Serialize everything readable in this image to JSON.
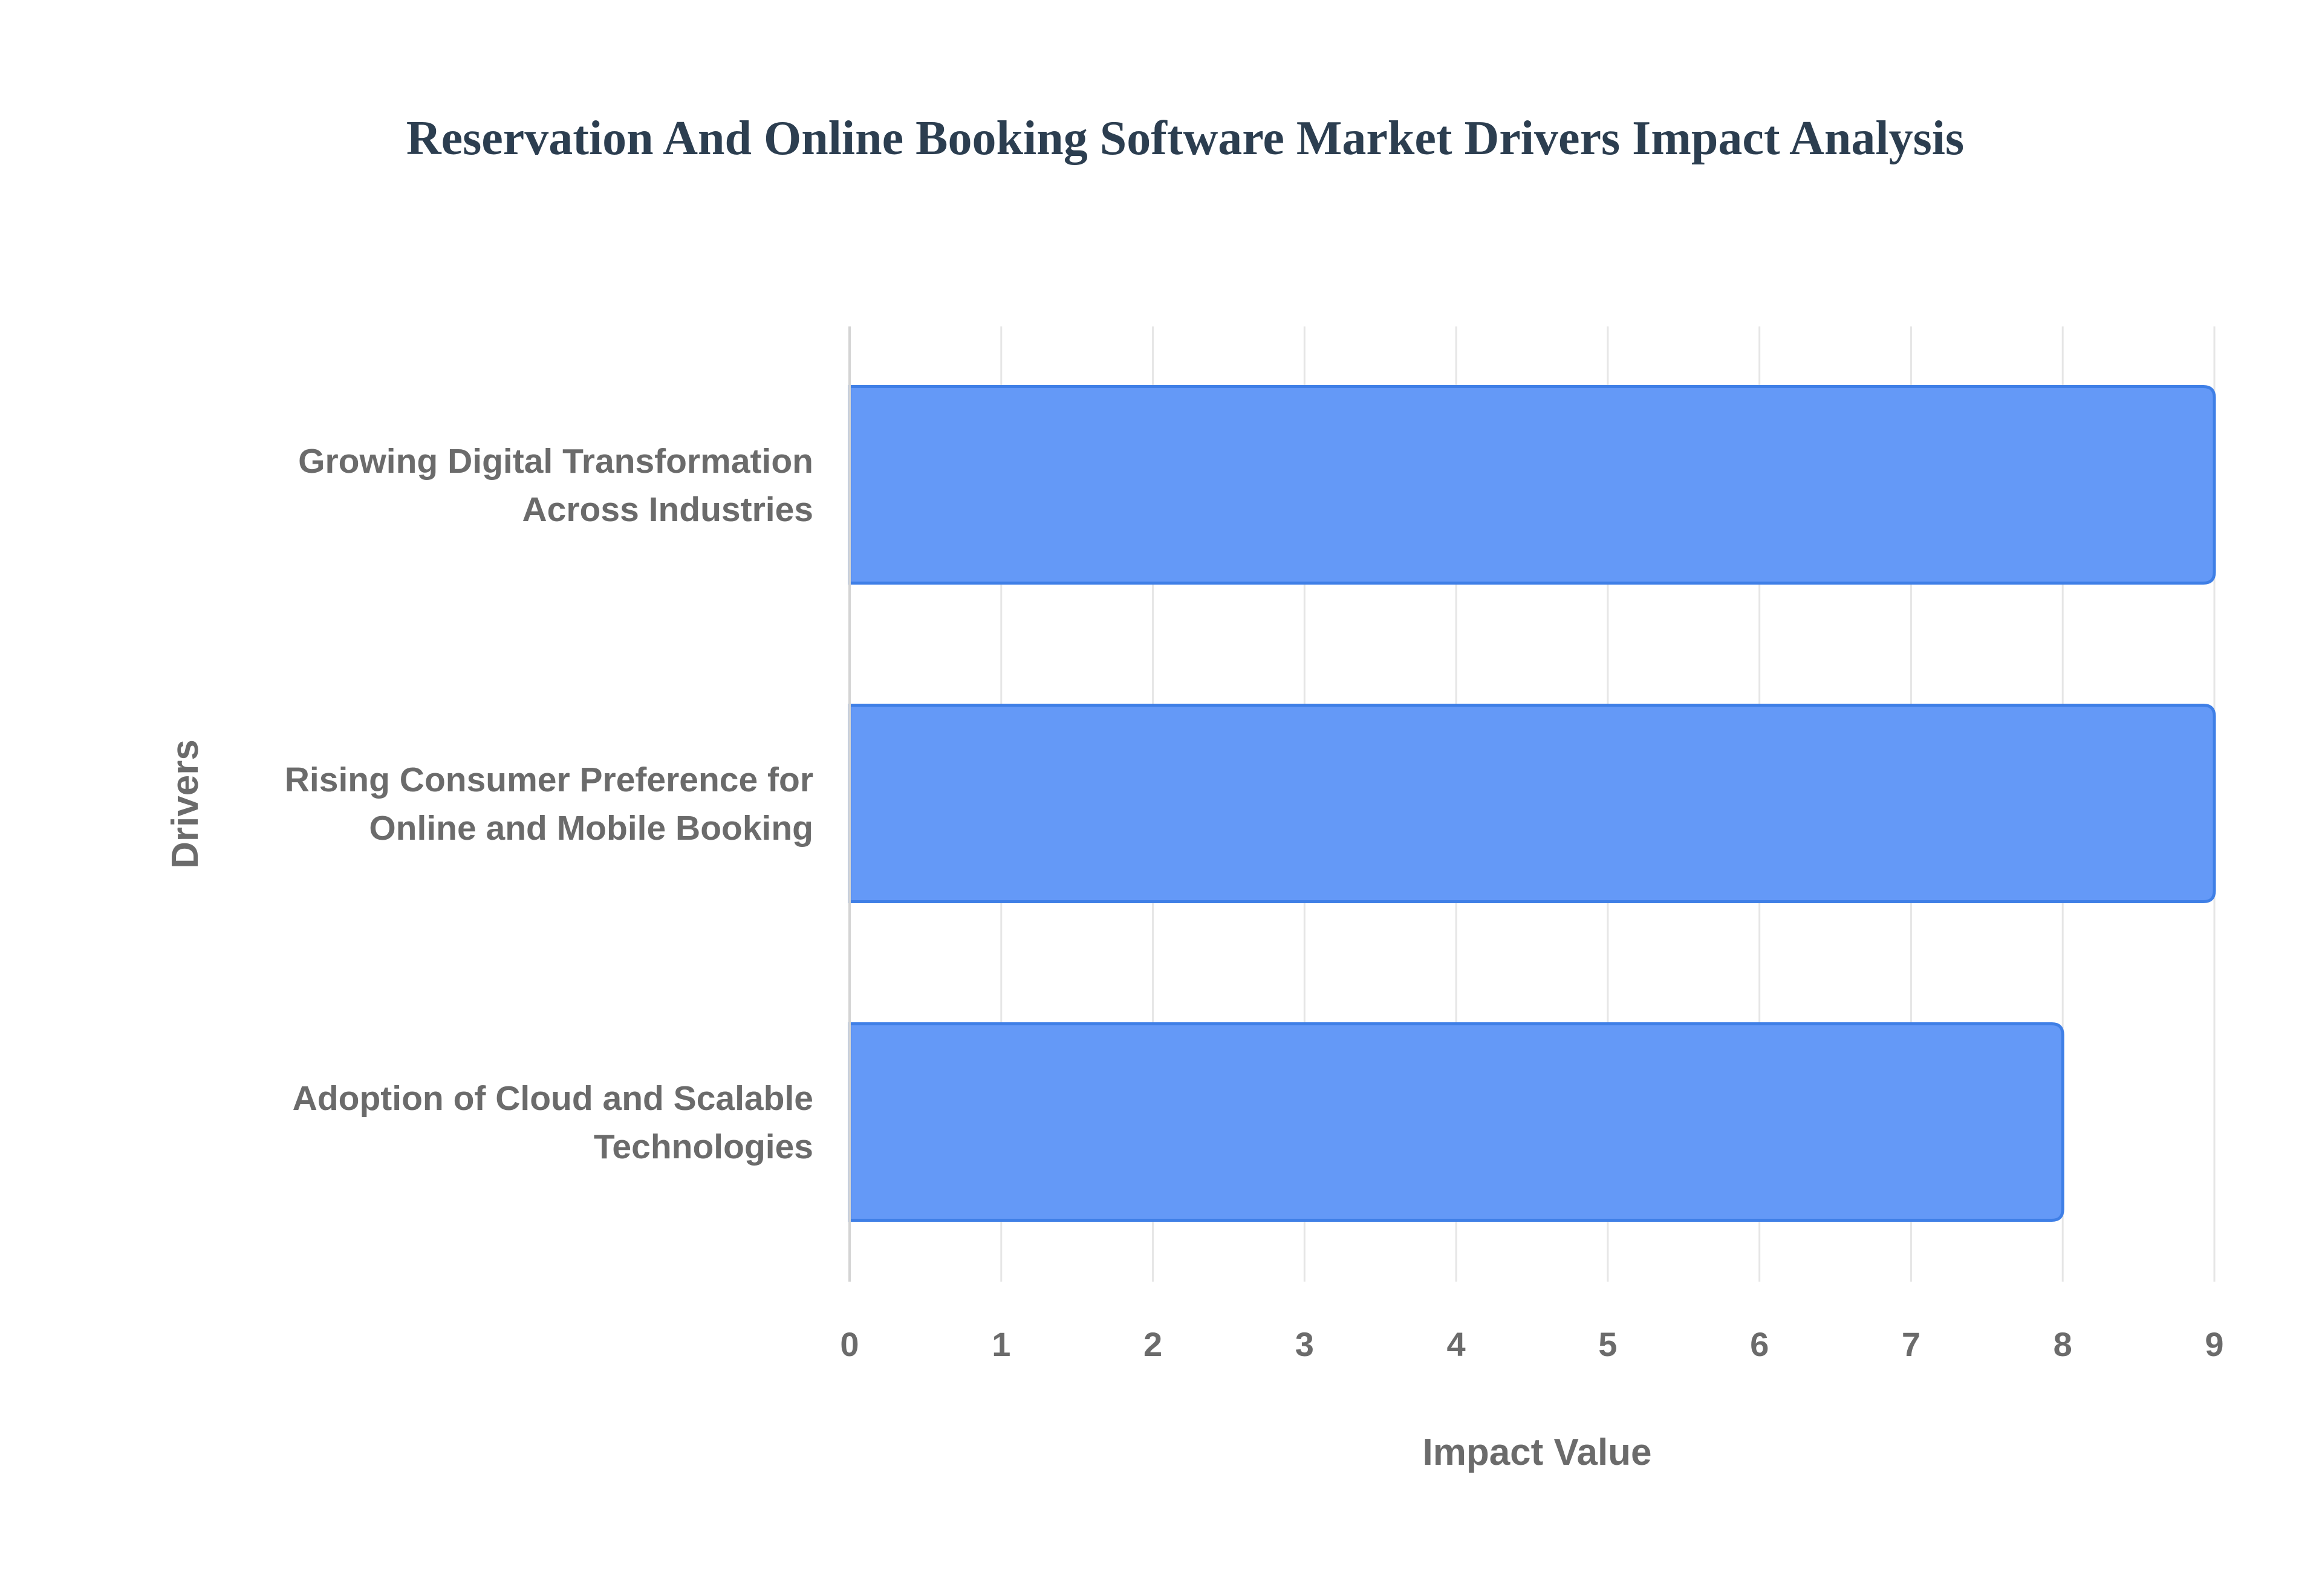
{
  "chart_data": {
    "type": "bar",
    "orientation": "horizontal",
    "title": "Reservation And Online Booking Software Market Drivers Impact Analysis",
    "xlabel": "Impact Value",
    "ylabel": "Drivers",
    "xlim": [
      0,
      9
    ],
    "xticks": [
      0,
      1,
      2,
      3,
      4,
      5,
      6,
      7,
      8,
      9
    ],
    "grid": true,
    "legend": "none",
    "categories": [
      [
        "Growing Digital Transformation",
        "Across Industries"
      ],
      [
        "Rising Consumer Preference for",
        "Online and Mobile Booking"
      ],
      [
        "Adoption of Cloud and Scalable",
        "Technologies"
      ]
    ],
    "values": [
      9,
      9,
      8
    ],
    "colors": {
      "bar_fill": "#6499f7",
      "bar_stroke": "#3f7fe6"
    }
  }
}
